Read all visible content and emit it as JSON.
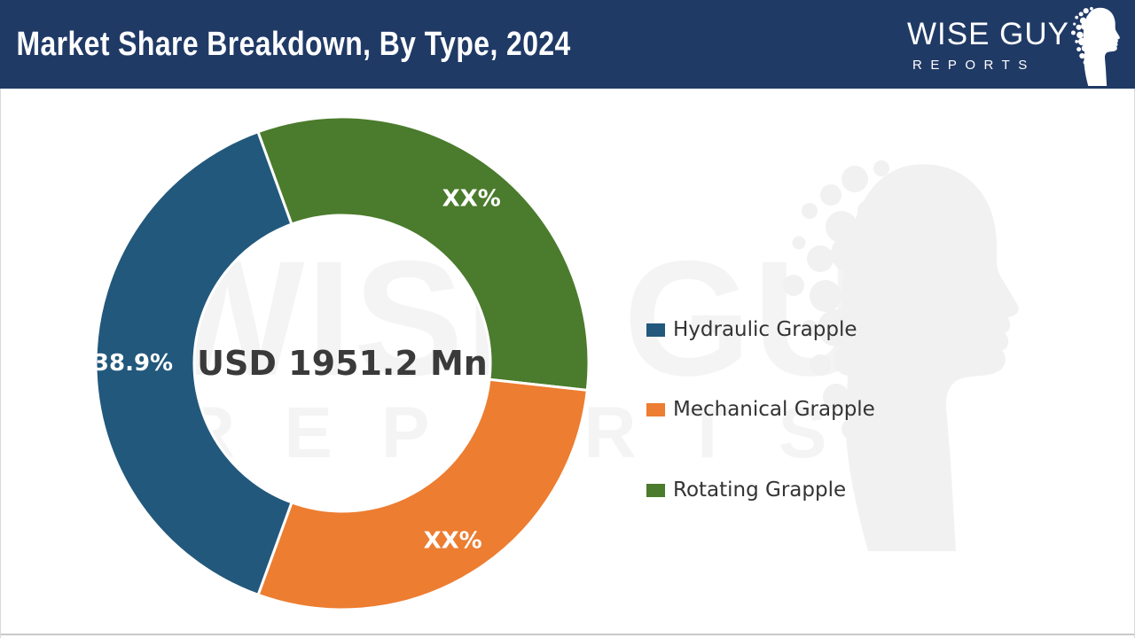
{
  "header": {
    "title": "Market Share Breakdown, By Type, 2024",
    "bg_color": "#203A66",
    "logo": {
      "wordmark": "WISE GUY",
      "subtext": "REPORTS"
    }
  },
  "watermark": {
    "wordmark": "WISE GUY",
    "subtext": "REPORTS"
  },
  "chart_data": {
    "type": "pie",
    "subtype": "donut",
    "title": "Market Share Breakdown, By Type, 2024",
    "center_label": "USD 1951.2 Mn",
    "start_angle_deg_from_top": -20,
    "rotation": "clockwise",
    "segments": [
      {
        "name": "Rotating Grapple",
        "display_label": "XX%",
        "value_pct": 32.3,
        "color": "#4B7B2C"
      },
      {
        "name": "Mechanical Grapple",
        "display_label": "XX%",
        "value_pct": 28.8,
        "color": "#ED7D31"
      },
      {
        "name": "Hydraulic Grapple",
        "display_label": "38.9%",
        "value_pct": 38.9,
        "color": "#22587C"
      }
    ],
    "legend": {
      "position": "right",
      "items": [
        {
          "label": "Hydraulic Grapple",
          "color": "#22587C"
        },
        {
          "label": "Mechanical Grapple",
          "color": "#ED7D31"
        },
        {
          "label": "Rotating Grapple",
          "color": "#4B7B2C"
        }
      ]
    }
  }
}
